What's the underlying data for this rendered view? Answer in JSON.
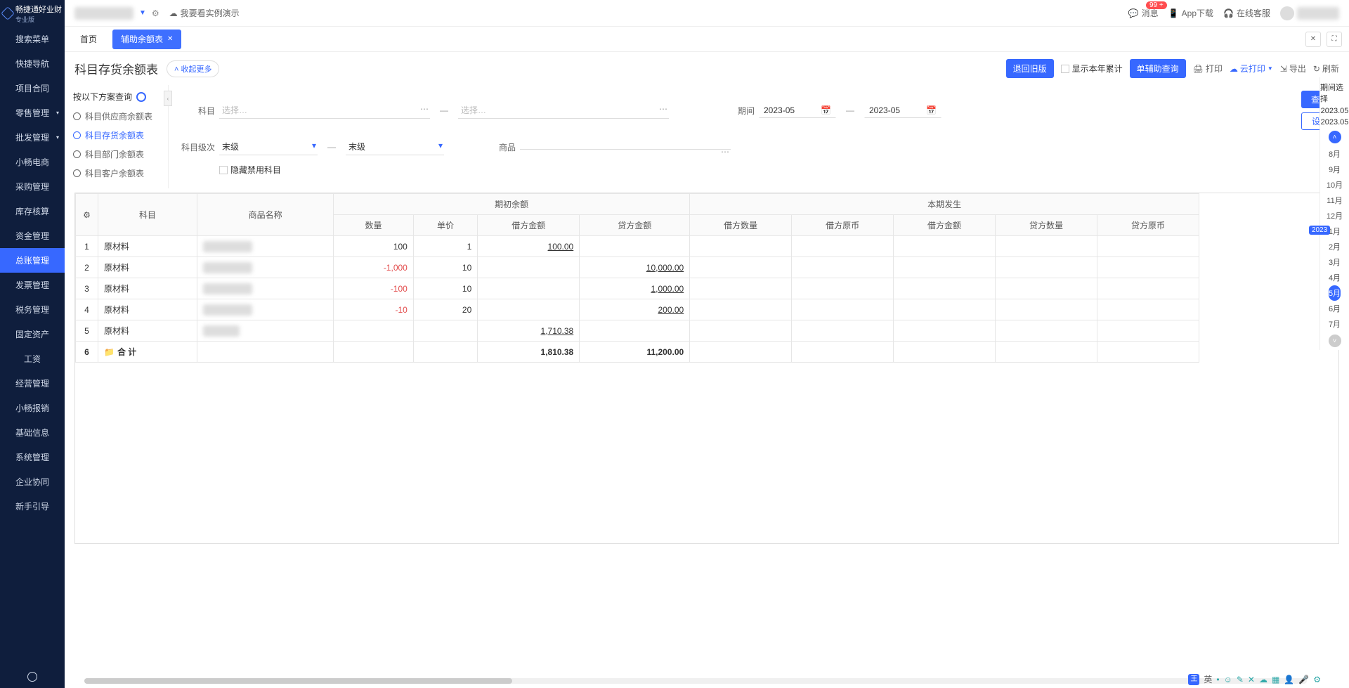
{
  "brand": {
    "name": "畅捷通好业财",
    "edition": "专业版"
  },
  "sidebar": {
    "items": [
      {
        "label": "搜索菜单"
      },
      {
        "label": "快捷导航"
      },
      {
        "label": "项目合同"
      },
      {
        "label": "零售管理",
        "expand": true
      },
      {
        "label": "批发管理",
        "expand": true
      },
      {
        "label": "小畅电商"
      },
      {
        "label": "采购管理"
      },
      {
        "label": "库存核算"
      },
      {
        "label": "资金管理"
      },
      {
        "label": "总账管理",
        "active": true
      },
      {
        "label": "发票管理"
      },
      {
        "label": "税务管理"
      },
      {
        "label": "固定资产"
      },
      {
        "label": "工资"
      },
      {
        "label": "经营管理"
      },
      {
        "label": "小畅报销"
      },
      {
        "label": "基础信息"
      },
      {
        "label": "系统管理"
      },
      {
        "label": "企业协同"
      },
      {
        "label": "新手引导"
      }
    ]
  },
  "topbar": {
    "demo": "我要看实例演示",
    "msg": "消息",
    "msg_badge": "99 +",
    "download": "App下载",
    "service": "在线客服"
  },
  "tabs": {
    "home": "首页",
    "active": "辅助余额表"
  },
  "page": {
    "title": "科目存货余额表",
    "collapse": "收起更多",
    "old": "退回旧版",
    "show_year": "显示本年累计",
    "single_query": "单辅助查询",
    "print": "打印",
    "cloud_print": "云打印",
    "export": "导出",
    "refresh": "刷新"
  },
  "scheme": {
    "title": "按以下方案查询",
    "items": [
      {
        "label": "科目供应商余额表"
      },
      {
        "label": "科目存货余额表",
        "active": true
      },
      {
        "label": "科目部门余额表"
      },
      {
        "label": "科目客户余额表"
      }
    ]
  },
  "filters": {
    "subject": "科目",
    "placeholder": "选择…",
    "level": "科目级次",
    "level_val": "末级",
    "product": "商品",
    "period": "期间",
    "date_from": "2023-05",
    "date_to": "2023-05",
    "hide_disabled": "隐藏禁用科目",
    "query": "查询",
    "settings": "设置"
  },
  "table": {
    "group_opening": "期初余额",
    "group_period": "本期发生",
    "cols": {
      "subject": "科目",
      "product": "商品名称",
      "qty": "数量",
      "price": "单价",
      "debit_amt": "借方金额",
      "credit_amt": "贷方金额",
      "debit_qty": "借方数量",
      "debit_orig": "借方原币",
      "debit_amt2": "借方金额",
      "credit_qty": "贷方数量",
      "credit_orig": "贷方原币"
    },
    "rows": [
      {
        "n": "1",
        "subject": "原材料",
        "product": "xxxxx",
        "qty": "100",
        "price": "1",
        "debit": "100.00",
        "credit": ""
      },
      {
        "n": "2",
        "subject": "原材料",
        "product": "xxxxx",
        "qty": "-1,000",
        "price": "10",
        "debit": "",
        "credit": "10,000.00",
        "neg": true
      },
      {
        "n": "3",
        "subject": "原材料",
        "product": "xxxxx",
        "qty": "-100",
        "price": "10",
        "debit": "",
        "credit": "1,000.00",
        "neg": true
      },
      {
        "n": "4",
        "subject": "原材料",
        "product": "xxxxx",
        "qty": "-10",
        "price": "20",
        "debit": "",
        "credit": "200.00",
        "neg": true
      },
      {
        "n": "5",
        "subject": "原材料",
        "product": "xx",
        "qty": "",
        "price": "",
        "debit": "1,710.38",
        "credit": ""
      }
    ],
    "total": {
      "n": "6",
      "label": "合 计",
      "debit": "1,810.38",
      "credit": "11,200.00"
    }
  },
  "period_rail": {
    "title": "期间选择",
    "from": "2023.05",
    "to": "2023.05",
    "months": [
      "8月",
      "9月",
      "10月",
      "11月",
      "12月",
      "1月",
      "2月",
      "3月",
      "4月",
      "5月",
      "6月",
      "7月"
    ],
    "active_idx": 9,
    "year_break_idx": 5,
    "year_tag": "2023"
  },
  "colors": {
    "primary": "#3768ff",
    "sidebar": "#0f1e3d",
    "neg": "#e34d4d"
  }
}
